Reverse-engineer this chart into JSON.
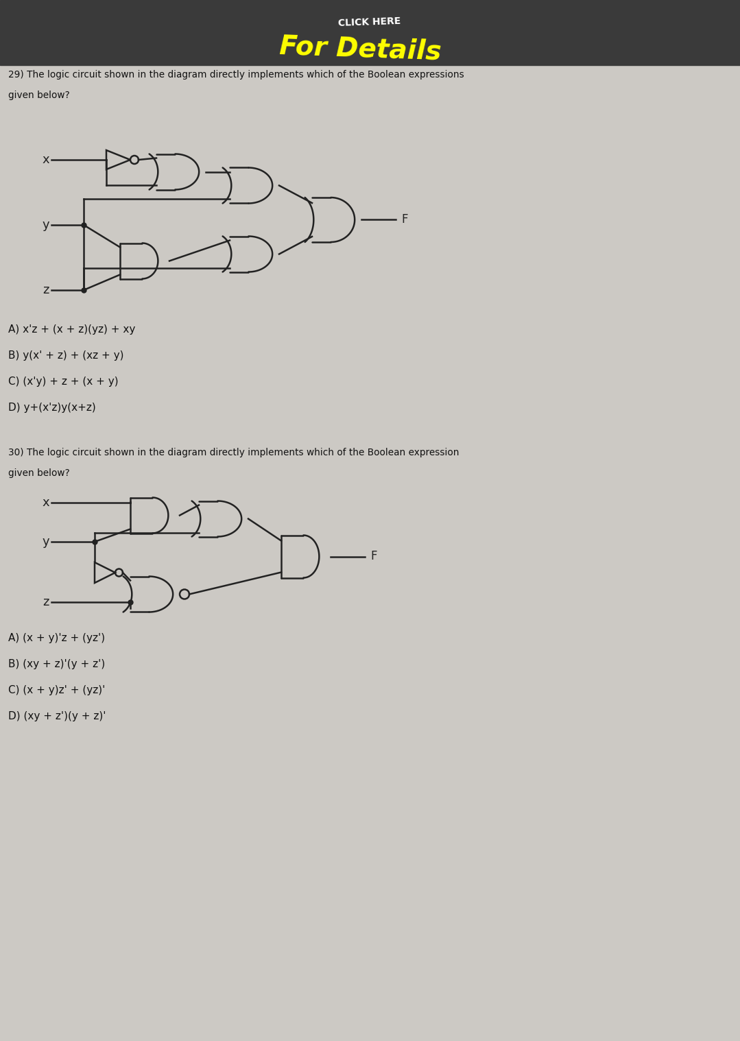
{
  "bg_header_color": "#3a3a3a",
  "bg_body_color": "#ccc9c4",
  "click_here_text": "CLICK HERE",
  "for_details_text": "For Details",
  "click_here_color": "#ffffff",
  "for_details_color": "#ffff00",
  "q29_text_line1": "29) The logic circuit shown in the diagram directly implements which of the Boolean expressions",
  "q29_text_line2": "given below?",
  "q29_options": [
    "A) x'z + (x + z)(yz) + xy",
    "B) y(x' + z) + (xz + y)",
    "C) (x'y) + z + (x + y)",
    "D) y+(x'z)y(x+z)"
  ],
  "q30_text_line1": "30) The logic circuit shown in the diagram directly implements which of the Boolean expression",
  "q30_text_line2": "given below?",
  "q30_options": [
    "A) (x + y)'z + (yz')",
    "B) (xy + z)'(y + z')",
    "C) (x + y)z' + (yz)'",
    "D) (xy + z')(y + z)'"
  ],
  "text_color": "#111111",
  "line_color": "#222222"
}
